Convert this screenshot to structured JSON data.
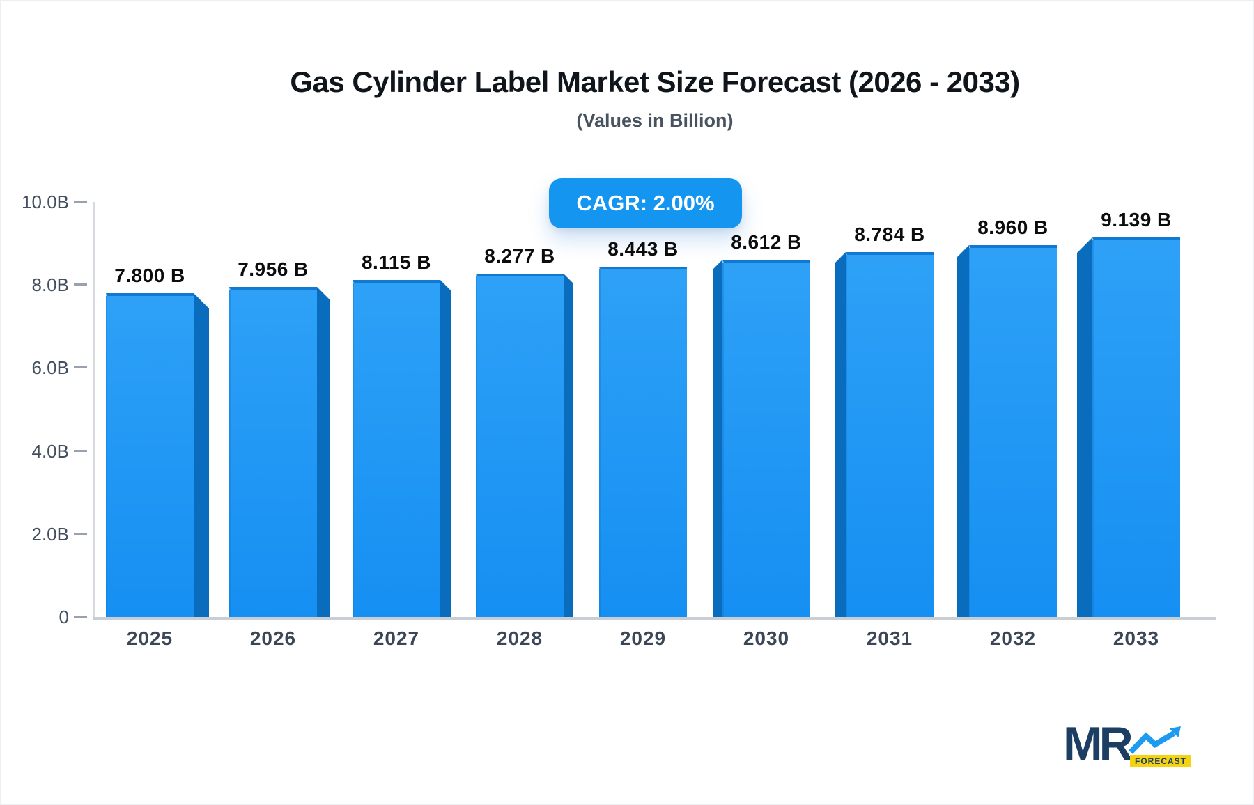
{
  "header": {
    "title": "Gas Cylinder Label Market Size Forecast (2026 - 2033)",
    "subtitle": "(Values in Billion)",
    "cagr_label": "CAGR: 2.00%"
  },
  "colors": {
    "title_text": "#10151c",
    "subtitle_text": "#49525f",
    "badge_bg": "#1495f0",
    "bar_face_top": "#2ea1f7",
    "bar_face_bottom": "#158ff2",
    "bar_side": "#0a6cbd",
    "bar_top_edge": "#1079d2",
    "axis_line": "#d6dade",
    "baseline": "#c9ced5",
    "tick": "#98a1ad",
    "ytick_label": "#434e5e",
    "value_label": "#0c0c0c",
    "year_label": "#3b4656",
    "logo_navy": "#1c3e63",
    "logo_blue": "#1e9bf0",
    "logo_yellow": "#f5d311"
  },
  "chart_data": {
    "type": "bar",
    "title": "Gas Cylinder Label Market Size Forecast (2026 - 2033)",
    "subtitle": "(Values in Billion)",
    "cagr_annotation": "CAGR: 2.00%",
    "unit": "Billion",
    "categories": [
      "2025",
      "2026",
      "2027",
      "2028",
      "2029",
      "2030",
      "2031",
      "2032",
      "2033"
    ],
    "values": [
      7.8,
      7.956,
      8.115,
      8.277,
      8.443,
      8.612,
      8.784,
      8.96,
      9.139
    ],
    "value_labels": [
      "7.800 B",
      "7.956 B",
      "8.115 B",
      "8.277 B",
      "8.443 B",
      "8.612 B",
      "8.784 B",
      "8.960 B",
      "9.139 B"
    ],
    "ylim": [
      0,
      10
    ],
    "yticks": [
      {
        "value": 0,
        "label": "0"
      },
      {
        "value": 2,
        "label": "2.0B"
      },
      {
        "value": 4,
        "label": "4.0B"
      },
      {
        "value": 6,
        "label": "6.0B"
      },
      {
        "value": 8,
        "label": "8.0B"
      },
      {
        "value": 10,
        "label": "10.0B"
      }
    ],
    "grid": false,
    "legend": false,
    "bar_style": "3d-perspective-center-vanishing"
  },
  "logo": {
    "mr": "MR",
    "forecast": "FORECAST"
  }
}
